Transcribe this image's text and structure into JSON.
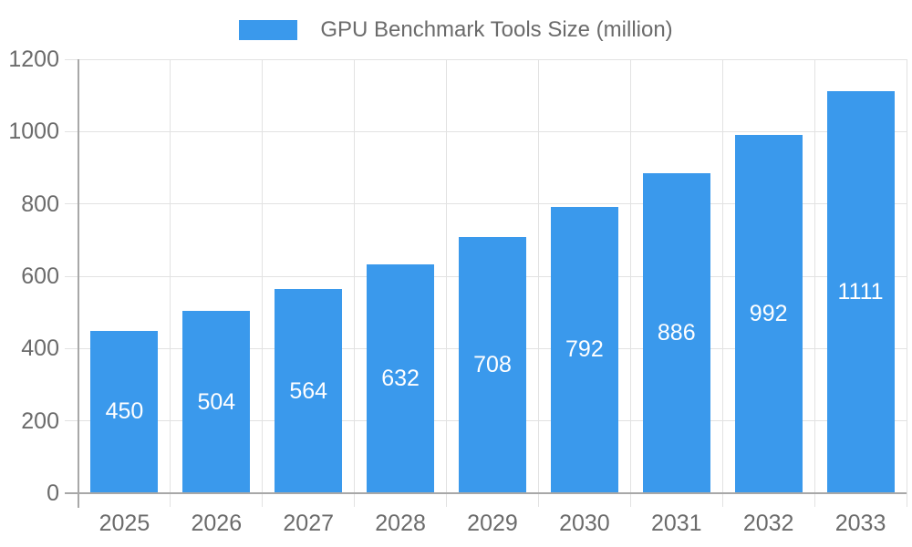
{
  "chart_data": {
    "type": "bar",
    "title": "GPU Benchmark Tools Size (million)",
    "categories": [
      "2025",
      "2026",
      "2027",
      "2028",
      "2029",
      "2030",
      "2031",
      "2032",
      "2033"
    ],
    "values": [
      450,
      504,
      564,
      632,
      708,
      792,
      886,
      992,
      1111
    ],
    "xlabel": "",
    "ylabel": "",
    "ylim": [
      0,
      1200
    ],
    "yticks": [
      0,
      200,
      400,
      600,
      800,
      1000,
      1200
    ],
    "grid": true,
    "data_labels_visible": true,
    "legend_position": "top-center",
    "colors": {
      "bar": "#3A99EC",
      "bar_label": "#FFFFFF",
      "axis_text": "#6B6B6B",
      "grid_line": "#E2E2E2",
      "axis_line": "#A8A8A8",
      "background": "#FFFFFF"
    }
  }
}
